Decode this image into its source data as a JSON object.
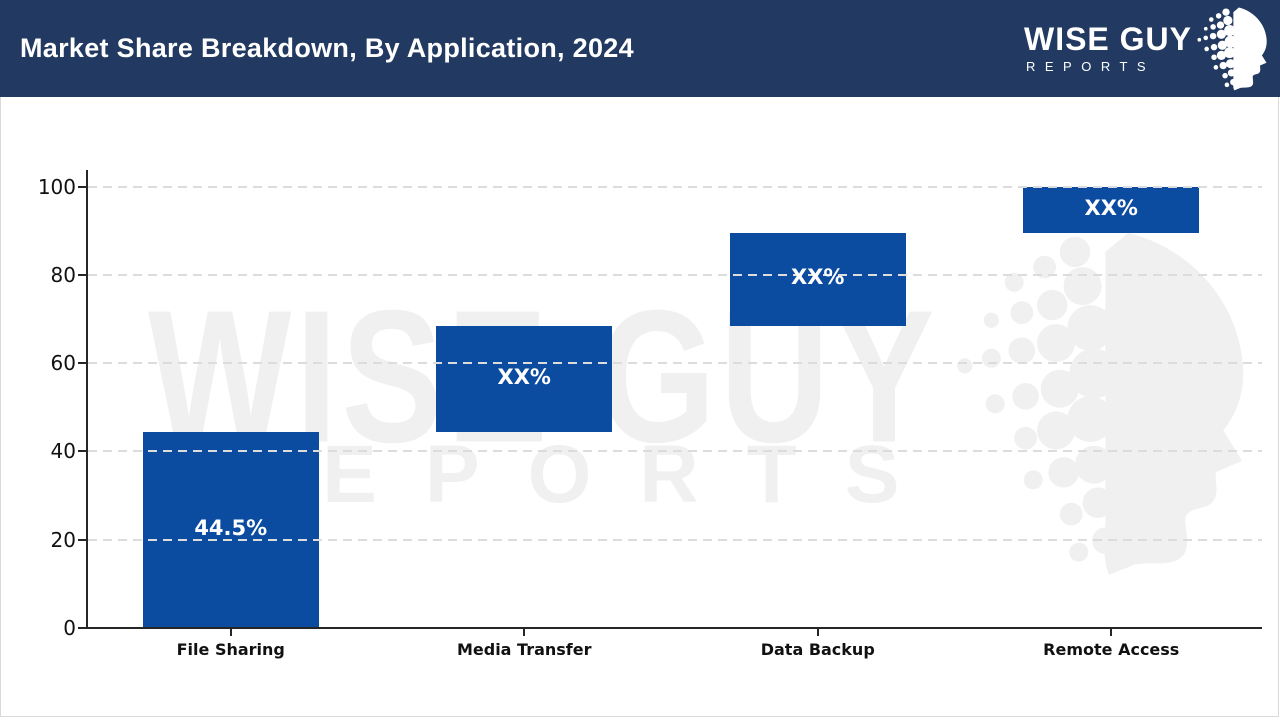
{
  "header": {
    "title": "Market Share Breakdown, By Application, 2024",
    "logo": {
      "line1": "WISE GUY",
      "line2": "REPORTS"
    }
  },
  "watermark": {
    "line1": "WISE GUY",
    "line2": "REPORTS"
  },
  "chart_data": {
    "type": "bar",
    "variant": "waterfall-floating-bars",
    "title": "Market Share Breakdown, By Application, 2024",
    "categories": [
      "File Sharing",
      "Media Transfer",
      "Data Backup",
      "Remote Access"
    ],
    "bars": [
      {
        "category": "File Sharing",
        "start": 0,
        "end": 44.5,
        "label": "44.5%"
      },
      {
        "category": "Media Transfer",
        "start": 44.5,
        "end": 68.5,
        "label": "XX%"
      },
      {
        "category": "Data Backup",
        "start": 68.5,
        "end": 89.5,
        "label": "XX%"
      },
      {
        "category": "Remote Access",
        "start": 89.5,
        "end": 100,
        "label": "XX%"
      }
    ],
    "yticks": [
      0,
      20,
      40,
      60,
      80,
      100
    ],
    "ylim": [
      0,
      103.5
    ],
    "grid": "horizontal-dashed",
    "legend": "none",
    "bar_color": "#0B4CA0"
  },
  "colors": {
    "header_bg": "#223A61",
    "bar": "#0B4CA0",
    "grid": "#DCDCDC",
    "axis": "#262626",
    "watermark": "#F0F0F0",
    "frame_border": "#D9D9D9",
    "title_text": "#FFFFFF"
  }
}
